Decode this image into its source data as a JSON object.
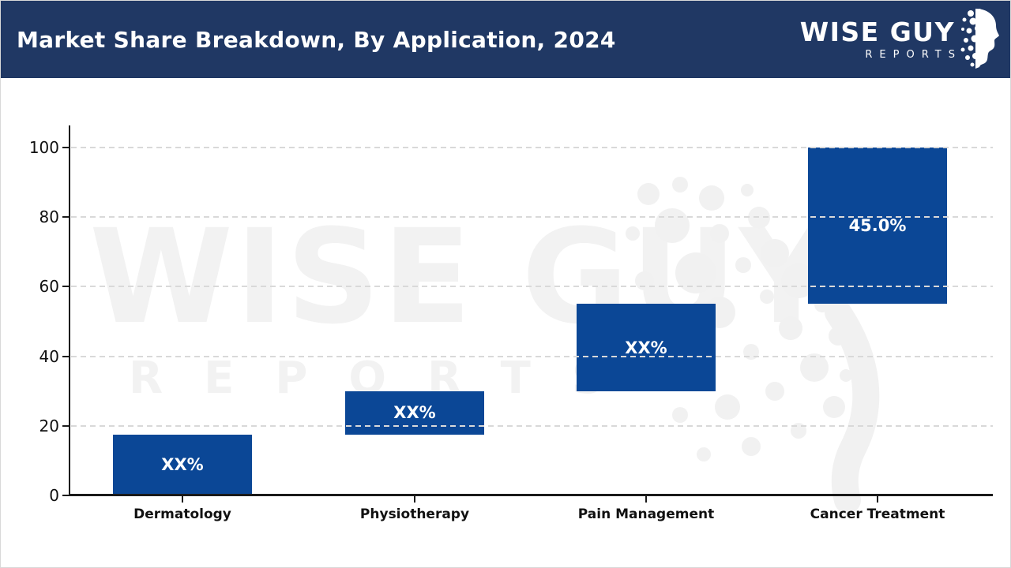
{
  "header": {
    "title": "Market Share Breakdown, By Application, 2024"
  },
  "brand": {
    "name": "WISE GUY",
    "subtitle": "REPORTS"
  },
  "watermark": {
    "line1": "WISE GUY",
    "line2": "REPORTS"
  },
  "colors": {
    "header_bg": "#203864",
    "bar": "#0b4796",
    "grid": "#d9d9d9",
    "axis": "#1a1a1a",
    "watermark": "#f2f2f2",
    "bar_label": "#ffffff"
  },
  "chart_data": {
    "type": "bar",
    "subtype": "waterfall-floating-segments",
    "title": "Market Share Breakdown, By Application, 2024",
    "categories": [
      "Dermatology",
      "Physiotherapy",
      "Pain Management",
      "Cancer Treatment"
    ],
    "segments": [
      {
        "category": "Dermatology",
        "start": 0,
        "end": 17.5,
        "label": "XX%"
      },
      {
        "category": "Physiotherapy",
        "start": 17.5,
        "end": 30,
        "label": "XX%"
      },
      {
        "category": "Pain Management",
        "start": 30,
        "end": 55,
        "label": "XX%"
      },
      {
        "category": "Cancer Treatment",
        "start": 55,
        "end": 100,
        "label": "45.0%"
      }
    ],
    "yticks": [
      0,
      20,
      40,
      60,
      80,
      100
    ],
    "ylim": [
      0,
      106
    ],
    "xlabel": "",
    "ylabel": "",
    "grid": "horizontal-dashed",
    "legend": "none",
    "bar_color": "#0b4796",
    "value_label_color": "#ffffff"
  }
}
